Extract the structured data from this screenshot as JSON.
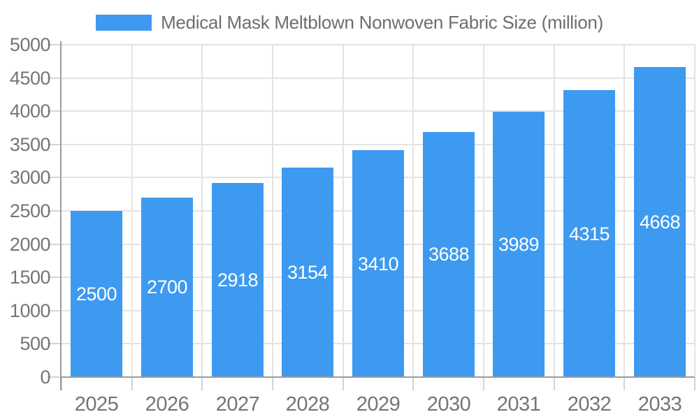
{
  "legend": {
    "label": "Medical Mask Meltblown Nonwoven Fabric Size (million)"
  },
  "chart_data": {
    "type": "bar",
    "title": "Medical Mask Meltblown Nonwoven Fabric Size (million)",
    "categories": [
      "2025",
      "2026",
      "2027",
      "2028",
      "2029",
      "2030",
      "2031",
      "2032",
      "2033"
    ],
    "series": [
      {
        "name": "Medical Mask Meltblown Nonwoven Fabric Size (million)",
        "values": [
          2500,
          2700,
          2918,
          3154,
          3410,
          3688,
          3989,
          4315,
          4668
        ]
      }
    ],
    "value_labels": [
      "2500",
      "2700",
      "2918",
      "3154",
      "3410",
      "3688",
      "3989",
      "4315",
      "4668"
    ],
    "xlabel": "",
    "ylabel": "",
    "ylim": [
      0,
      5000
    ],
    "ytick_step": 500,
    "ytick_labels": [
      "0",
      "500",
      "1000",
      "1500",
      "2000",
      "2500",
      "3000",
      "3500",
      "4000",
      "4500",
      "5000"
    ],
    "grid": true,
    "legend_position": "top",
    "colors": {
      "bar": "#3E9AF0",
      "grid": "#E3E3E3",
      "axis": "#9B9B9B",
      "tick": "#D4D4D4",
      "axis_label": "#757575",
      "title": "#6E6E6E",
      "value_label": "#FFFFFF"
    }
  }
}
